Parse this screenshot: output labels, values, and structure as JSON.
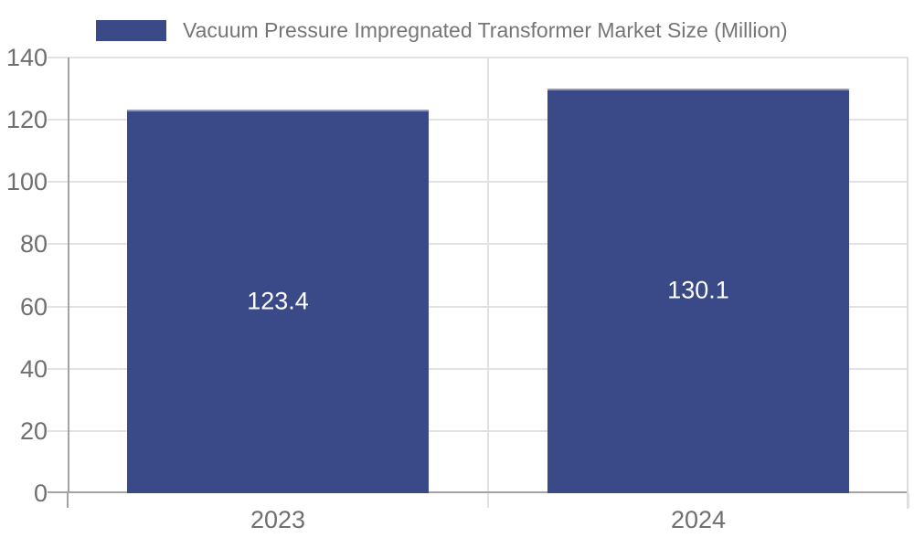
{
  "chart_data": {
    "type": "bar",
    "title": "Vacuum Pressure Impregnated Transformer Market Size (Million)",
    "categories": [
      "2023",
      "2024"
    ],
    "series": [
      {
        "name": "Vacuum Pressure Impregnated Transformer Market Size (Million)",
        "values": [
          123.4,
          130.1
        ],
        "color": "#3A4A88"
      }
    ],
    "xlabel": "",
    "ylabel": "",
    "ylim": [
      0,
      140
    ],
    "yticks": [
      0,
      20,
      40,
      60,
      80,
      100,
      120,
      140
    ],
    "grid": true,
    "legend_position": "top-left",
    "value_labels_inside_bars": true,
    "colors": {
      "bar": "#3A4A88",
      "bar_top_edge": "#9298B8",
      "grid": "#E2E2E2",
      "axis": "#A3A3A3",
      "plot_right_border": "#DCDCDC",
      "tick_text": "#6F6F6F",
      "legend_text": "#757575",
      "value_label_text": "#FFFFFF",
      "background": "#FFFFFF"
    }
  }
}
